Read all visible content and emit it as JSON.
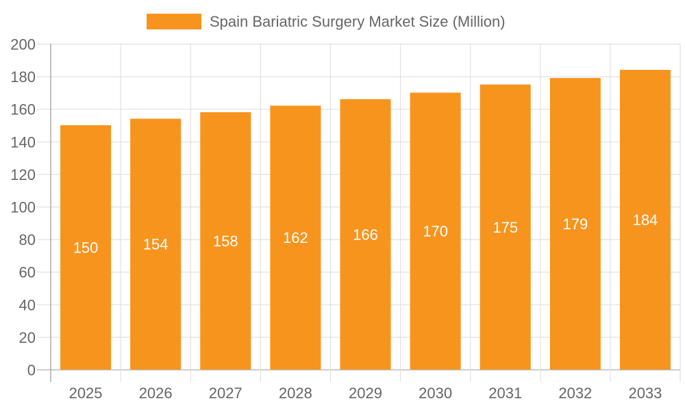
{
  "chart_data": {
    "type": "bar",
    "title": "",
    "xlabel": "",
    "ylabel": "",
    "categories": [
      "2025",
      "2026",
      "2027",
      "2028",
      "2029",
      "2030",
      "2031",
      "2032",
      "2033"
    ],
    "series": [
      {
        "name": "Spain Bariatric Surgery Market Size (Million)",
        "values": [
          150,
          154,
          158,
          162,
          166,
          170,
          175,
          179,
          184
        ],
        "color": "#F7941E"
      }
    ],
    "ylim": [
      0,
      200
    ],
    "yticks": [
      0,
      20,
      40,
      60,
      80,
      100,
      120,
      140,
      160,
      180,
      200
    ],
    "grid": true,
    "legend_position": "top",
    "data_labels": true
  }
}
